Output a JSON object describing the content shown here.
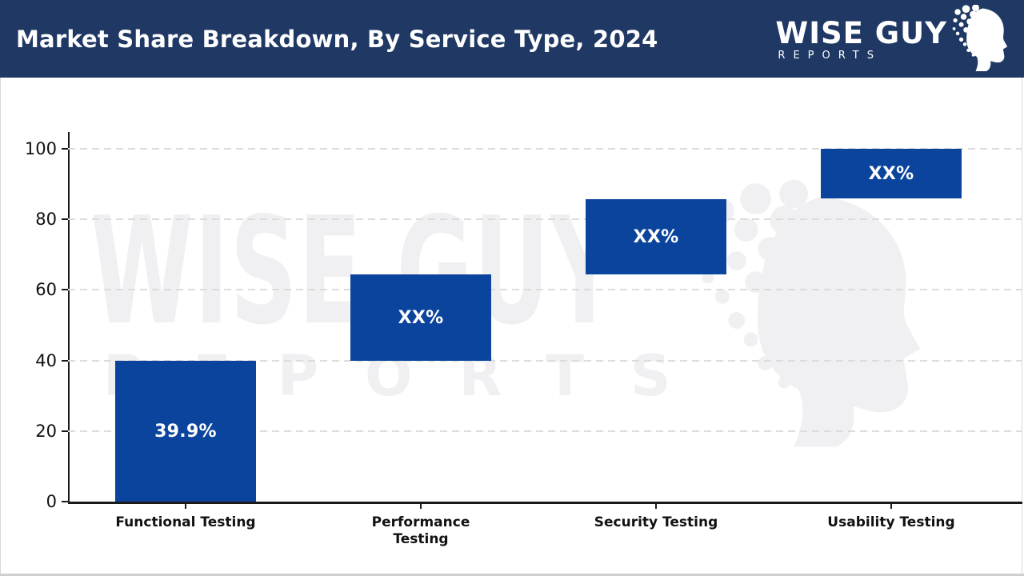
{
  "header": {
    "title": "Market Share Breakdown, By Service Type, 2024",
    "logo": {
      "line1": "WISE GUY",
      "line2": "REPORTS"
    }
  },
  "watermark": {
    "line1": "WISE GUY",
    "line2": "REPORTS"
  },
  "colors": {
    "header_bg": "#1F3864",
    "bar": "#0A449C",
    "grid": "#DCDCDC",
    "watermark": "#F0F0F2",
    "axis": "#1A1A1A",
    "bar_label": "#FFFFFF"
  },
  "chart_data": {
    "type": "bar",
    "subtype": "waterfall",
    "title": "Market Share Breakdown, By Service Type, 2024",
    "categories": [
      "Functional Testing",
      "Performance\nTesting",
      "Security Testing",
      "Usability Testing"
    ],
    "segments": [
      {
        "category": "Functional Testing",
        "start": 0,
        "end": 39.9,
        "label": "39.9%"
      },
      {
        "category": "Performance Testing",
        "start": 39.9,
        "end": 64.4,
        "label": "XX%"
      },
      {
        "category": "Security Testing",
        "start": 64.4,
        "end": 85.7,
        "label": "XX%"
      },
      {
        "category": "Usability Testing",
        "start": 85.9,
        "end": 100,
        "label": "XX%"
      }
    ],
    "xlabel": "",
    "ylabel": "",
    "ylim": [
      0,
      100
    ],
    "yticks": [
      0,
      20,
      40,
      60,
      80,
      100
    ],
    "grid": "horizontal-dashed",
    "legend": "none"
  }
}
